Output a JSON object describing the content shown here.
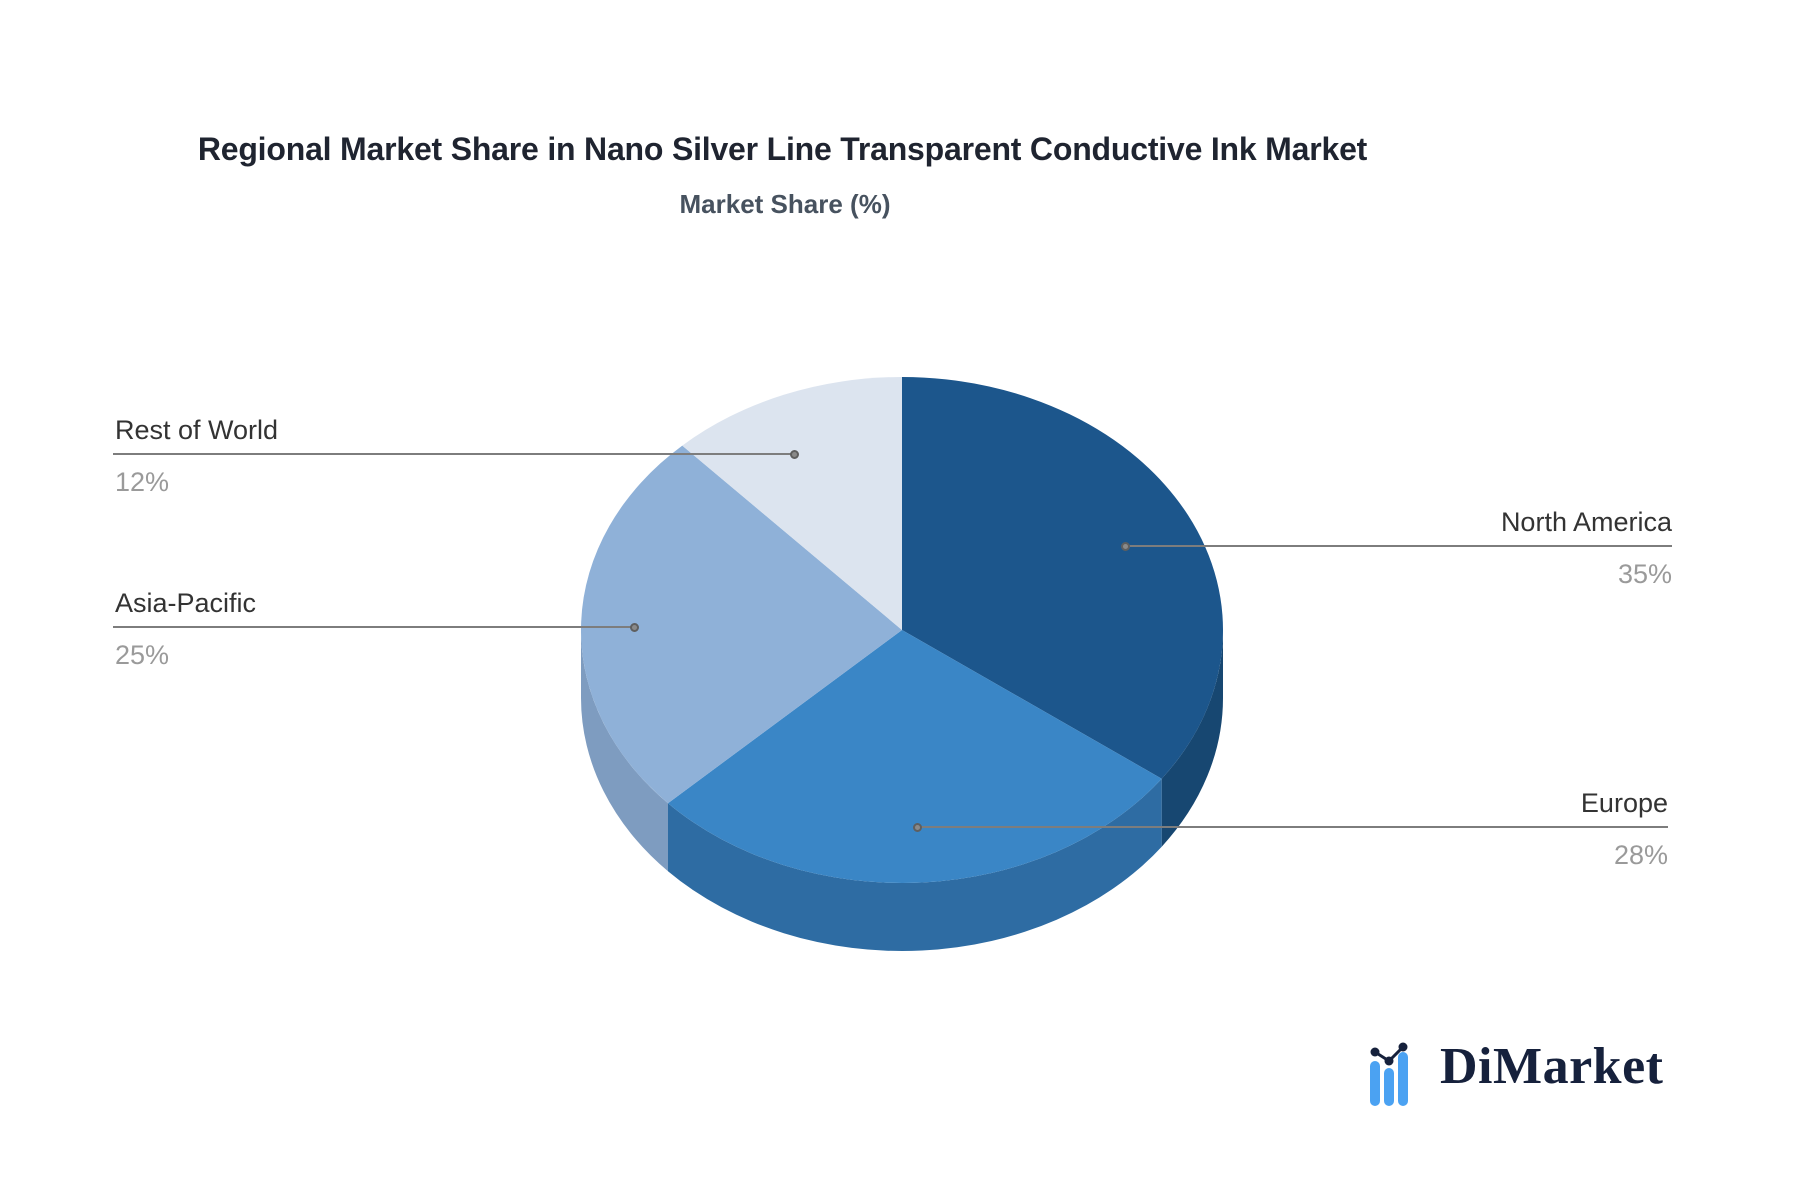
{
  "chart_data": {
    "type": "pie",
    "style_3d": true,
    "title": "Regional Market Share in Nano Silver Line Transparent Conductive Ink Market",
    "subtitle": "Market Share (%)",
    "unit": "%",
    "start_angle": "12-oclock",
    "direction": "clockwise",
    "legend_position": "callout-labels",
    "slices": [
      {
        "label": "North America",
        "value": 35,
        "display": "35%",
        "color": "#1C568C",
        "side_color": "#174771"
      },
      {
        "label": "Europe",
        "value": 28,
        "display": "28%",
        "color": "#3A86C6",
        "side_color": "#2E6CA3"
      },
      {
        "label": "Asia-Pacific",
        "value": 25,
        "display": "25%",
        "color": "#8FB1D8",
        "side_color": "#7E9CC0"
      },
      {
        "label": "Rest of World",
        "value": 12,
        "display": "12%",
        "color": "#DCE4EF",
        "side_color": "#C3CEDE"
      }
    ]
  },
  "branding": {
    "logo_text": "DiMarket"
  },
  "style": {
    "leader_line_color": "#7d7d7d",
    "label_color": "#333333",
    "value_color": "#9a9a9a",
    "logo_bar_color": "#4BA2F2",
    "logo_navy_color": "#16213C"
  }
}
